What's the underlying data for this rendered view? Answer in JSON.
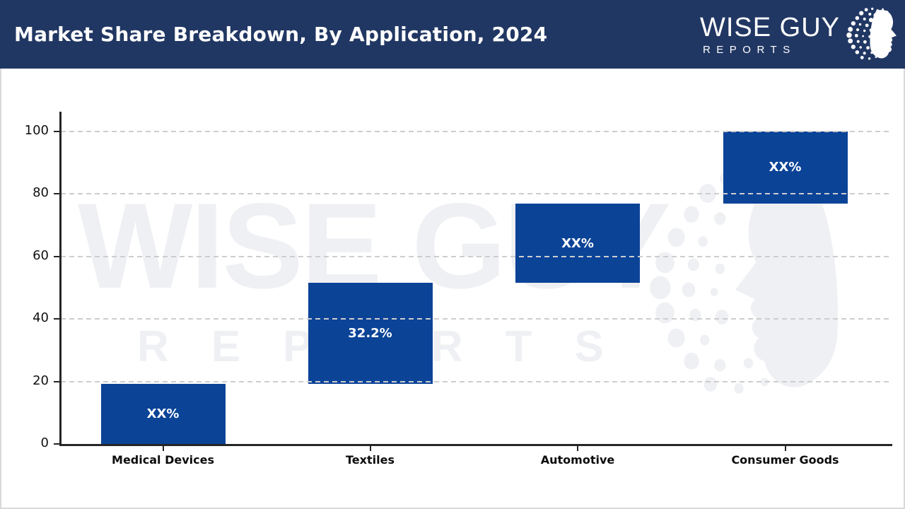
{
  "header": {
    "title": "Market Share Breakdown, By Application, 2024",
    "logo": {
      "line1": "WISE GUY",
      "line2": "REPORTS"
    }
  },
  "watermark": {
    "line1": "WISE GUY",
    "line2": "REPORTS"
  },
  "chart_data": {
    "type": "bar",
    "subtype": "floating-waterfall",
    "title": "Market Share Breakdown, By Application, 2024",
    "categories": [
      "Medical Devices",
      "Textiles",
      "Automotive",
      "Consumer Goods"
    ],
    "bars": [
      {
        "category": "Medical Devices",
        "start": 0,
        "end": 19.3,
        "label": "XX%"
      },
      {
        "category": "Textiles",
        "start": 19.3,
        "end": 51.5,
        "label": "32.2%"
      },
      {
        "category": "Automotive",
        "start": 51.5,
        "end": 77,
        "label": "XX%"
      },
      {
        "category": "Consumer Goods",
        "start": 77,
        "end": 100,
        "label": "XX%"
      }
    ],
    "ylim": [
      0,
      100
    ],
    "yticks": [
      0,
      20,
      40,
      60,
      80,
      100
    ],
    "grid": "horizontal-dashed",
    "grid_above_bars": true,
    "legend": "none",
    "bar_color": "#0b4397"
  },
  "colors": {
    "header_bg": "#213763",
    "bar": "#0b4397",
    "grid": "#cdcdcd",
    "axis": "#262626",
    "watermark": "#eff0f3",
    "title_text": "#ffffff",
    "tick_text": "#111111"
  }
}
